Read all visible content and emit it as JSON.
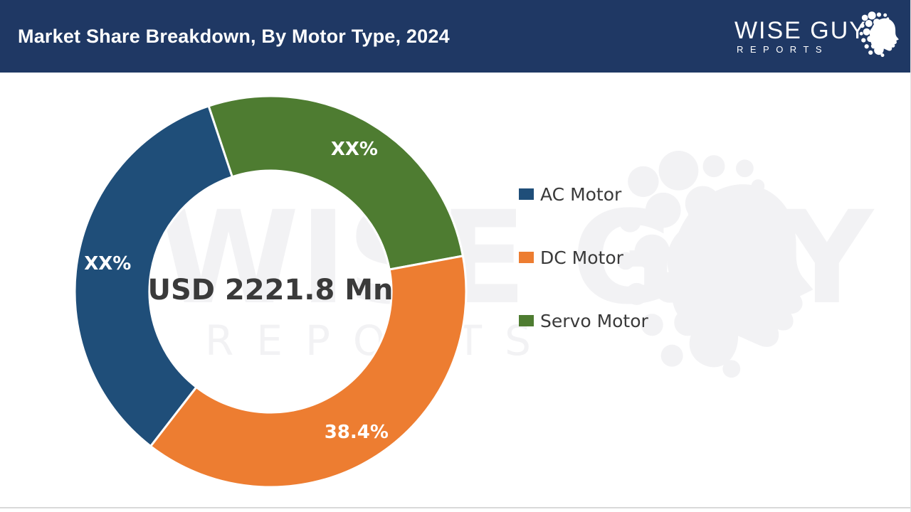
{
  "header": {
    "title": "Market Share Breakdown, By Motor Type, 2024",
    "logo": {
      "line1": "WISE GUY",
      "line2": "REPORTS"
    }
  },
  "watermark": {
    "line1": "WISE GUY",
    "line2": "REPORTS"
  },
  "chart_data": {
    "type": "pie",
    "subtype": "donut",
    "title": "Market Share Breakdown, By Motor Type, 2024",
    "center_label": "USD 2221.8 Mn",
    "start_angle_deg": 10.5,
    "direction": "counterclockwise",
    "slices": [
      {
        "name": "Servo Motor",
        "label": "XX%",
        "value_pct": 27.2,
        "color": "#4E7C31"
      },
      {
        "name": "AC Motor",
        "label": "XX%",
        "value_pct": 34.4,
        "color": "#1F4E79"
      },
      {
        "name": "DC Motor",
        "label": "38.4%",
        "value_pct": 38.4,
        "color": "#ED7D31"
      }
    ],
    "legend_position": "right"
  },
  "legend": {
    "items": [
      {
        "label": "AC Motor",
        "color": "#1F4E79"
      },
      {
        "label": "DC Motor",
        "color": "#ED7D31"
      },
      {
        "label": "Servo Motor",
        "color": "#4E7C31"
      }
    ]
  },
  "colors": {
    "header_bg": "#1F3864",
    "accent_blue": "#1F4E79",
    "accent_orange": "#ED7D31",
    "accent_green": "#4E7C31",
    "center_text": "#3A3A3A",
    "watermark": "#F2F2F4",
    "divider": "#D9D9D9"
  }
}
